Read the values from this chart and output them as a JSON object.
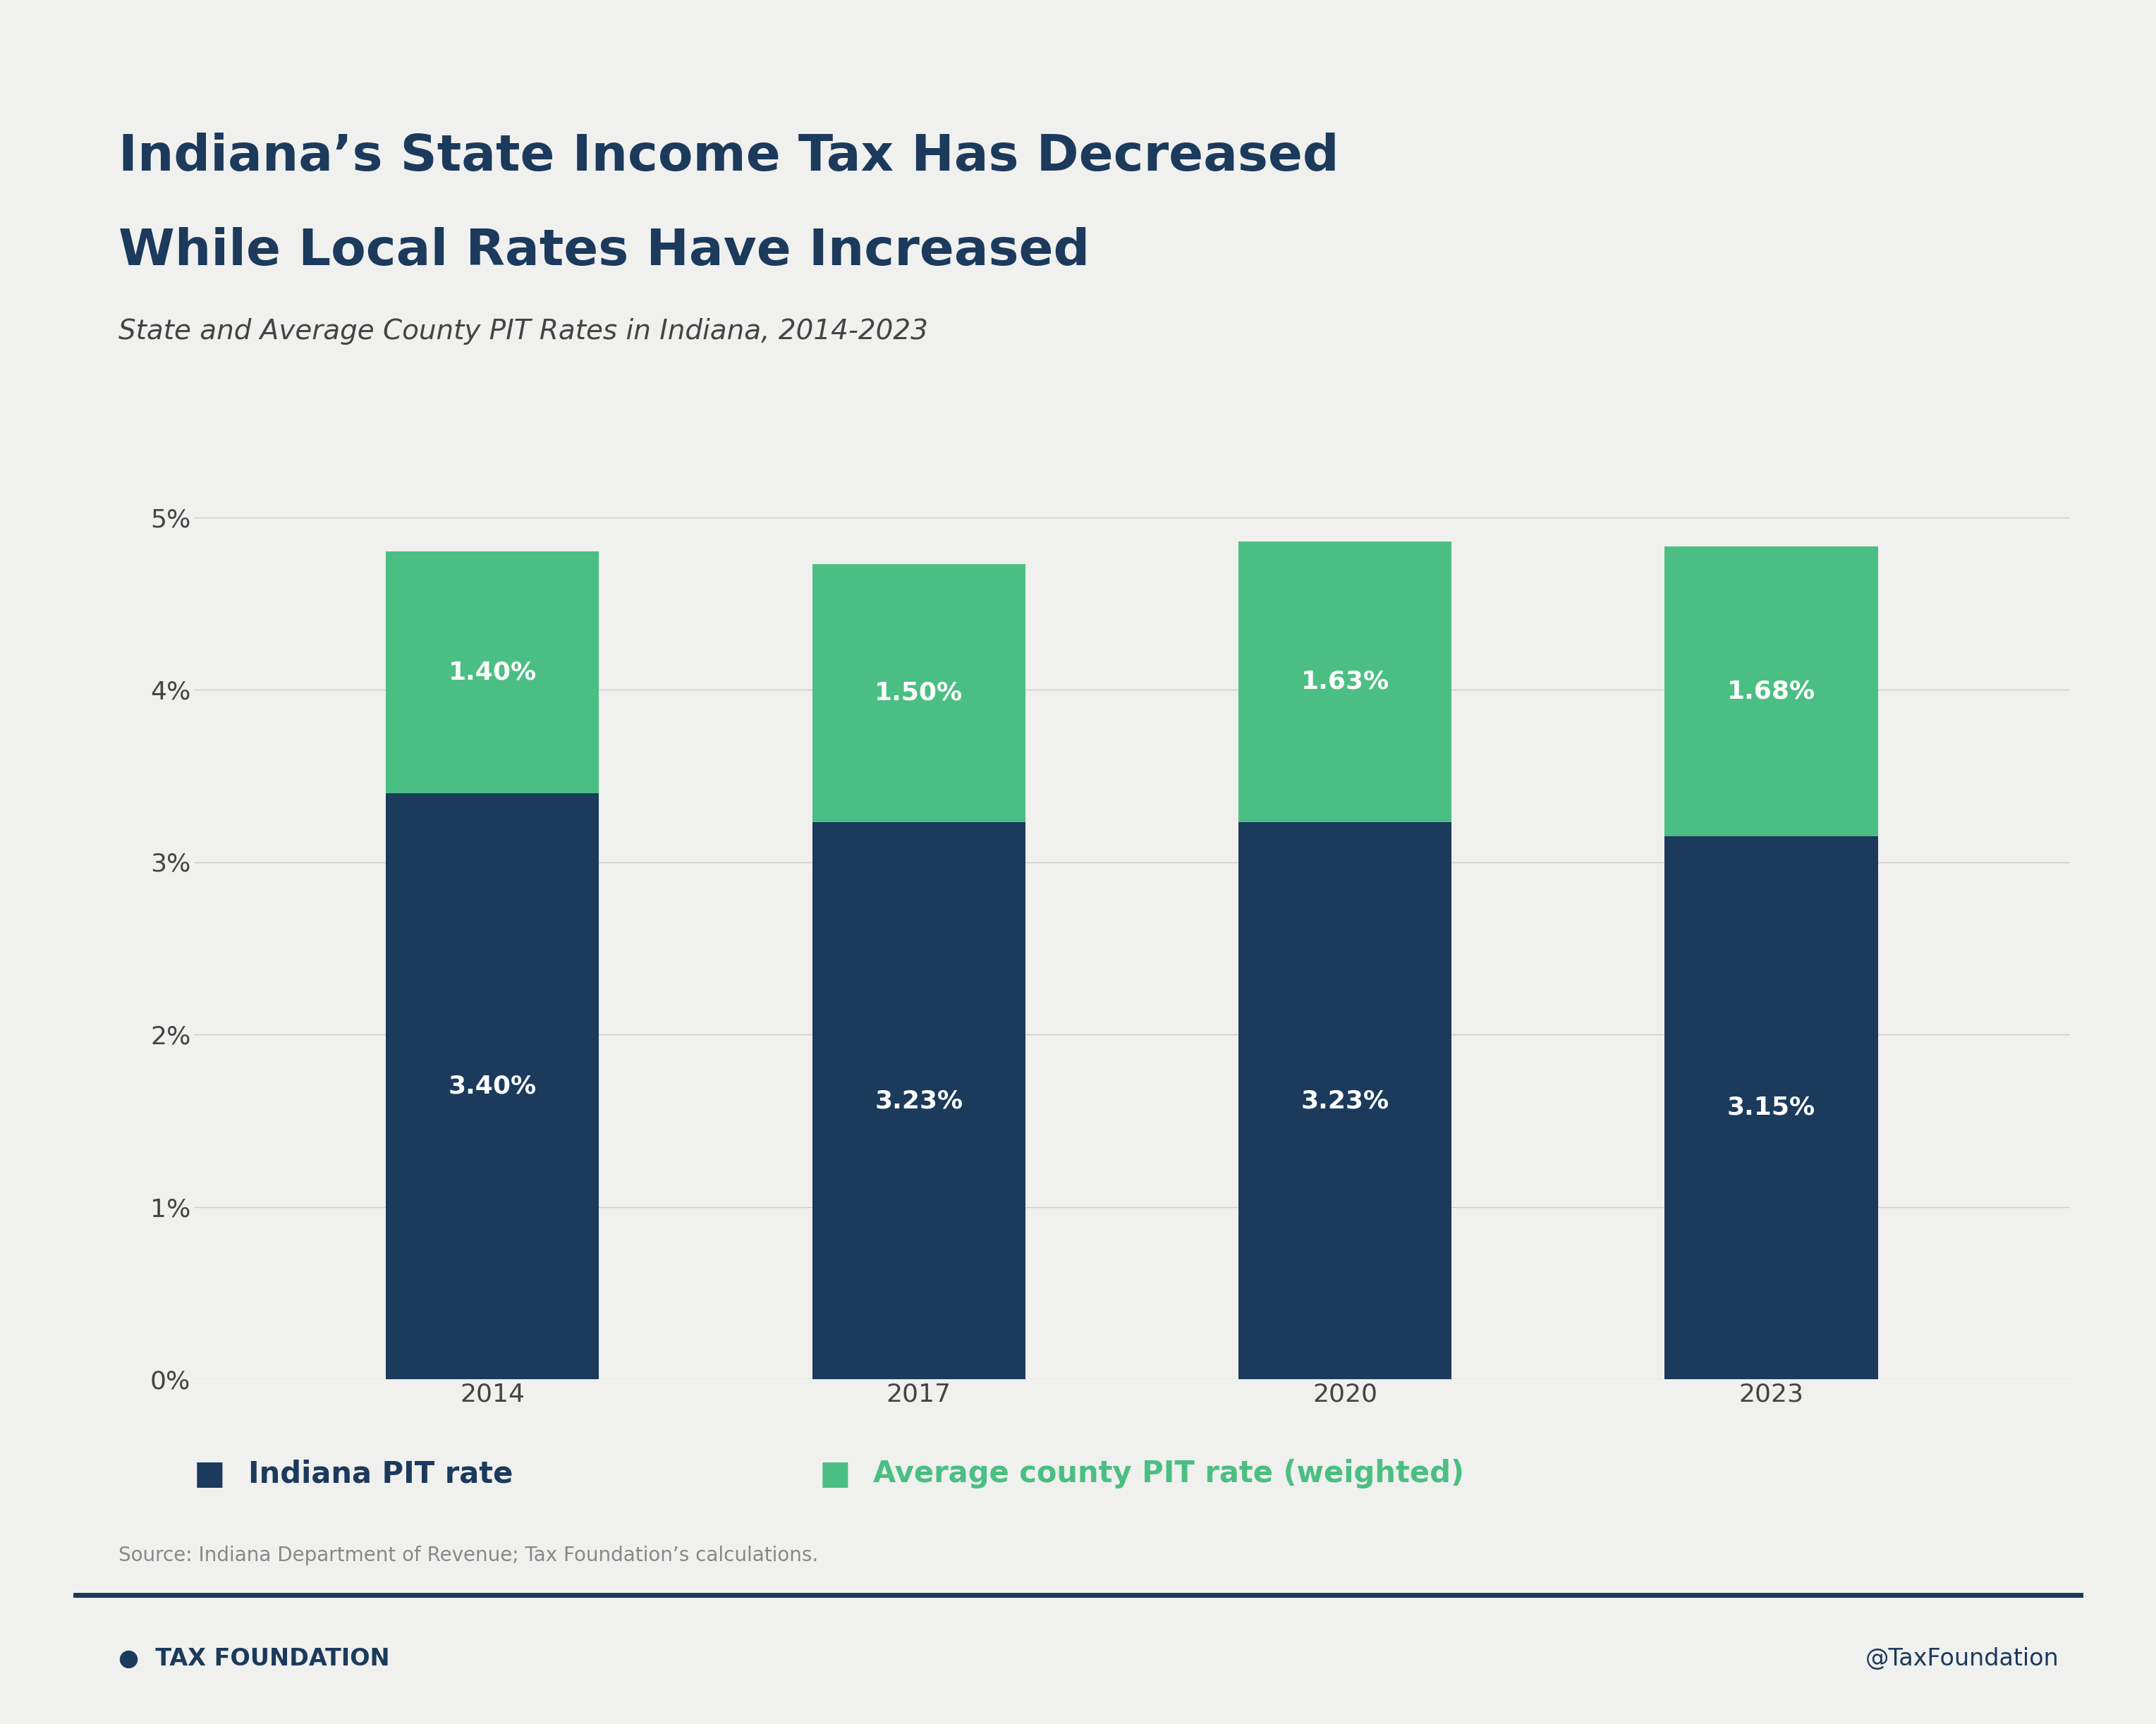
{
  "title_line1": "Indiana’s State Income Tax Has Decreased",
  "title_line2": "While Local Rates Have Increased",
  "subtitle": "State and Average County PIT Rates in Indiana, 2014-2023",
  "years": [
    "2014",
    "2017",
    "2020",
    "2023"
  ],
  "state_rates": [
    3.4,
    3.23,
    3.23,
    3.15
  ],
  "county_rates": [
    1.4,
    1.5,
    1.63,
    1.68
  ],
  "state_color": "#1b3a5c",
  "county_color": "#4bbf83",
  "background_color": "#f0f0ee",
  "yticks": [
    0,
    1,
    2,
    3,
    4,
    5
  ],
  "ylim": [
    0,
    5.5
  ],
  "legend_state_label": "Indiana PIT rate",
  "legend_county_label": "Average county PIT rate (weighted)",
  "source_text": "Source: Indiana Department of Revenue; Tax Foundation’s calculations.",
  "twitter_text": "@TaxFoundation",
  "state_label_color": "#ffffff",
  "county_label_color": "#ffffff",
  "title_color": "#1b3a5c",
  "bar_width": 0.5,
  "title_fontsize": 52,
  "subtitle_fontsize": 28,
  "axis_tick_fontsize": 26,
  "bar_label_fontsize": 26,
  "legend_fontsize": 30,
  "source_fontsize": 20,
  "twitter_fontsize": 24
}
